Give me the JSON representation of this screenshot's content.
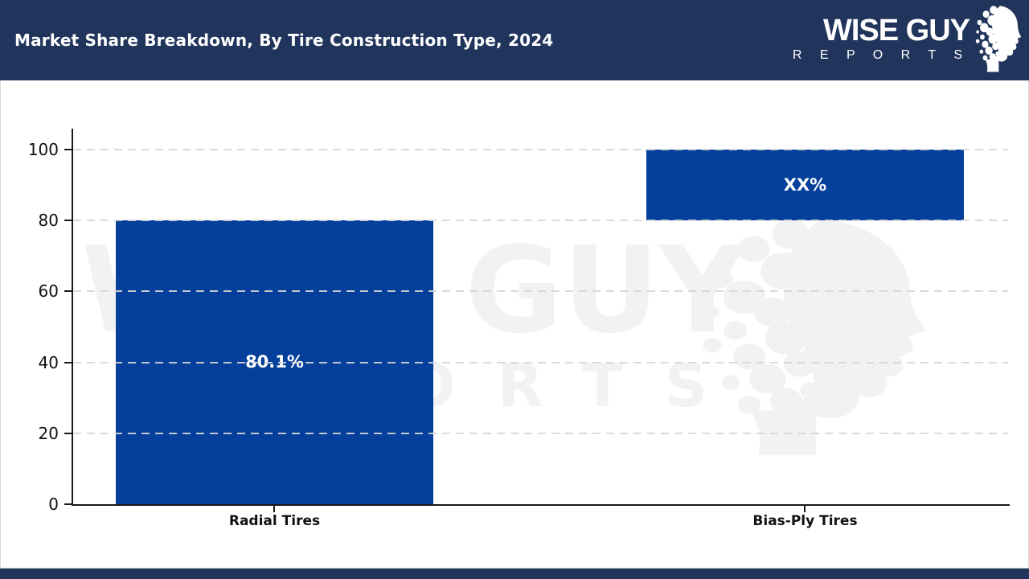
{
  "header": {
    "title": "Market Share Breakdown, By Tire Construction Type, 2024",
    "logo": {
      "line1": "WISE GUY",
      "line2": "R E P O R T S"
    }
  },
  "watermark": {
    "line1": "WISE GUY",
    "line2": "REPORTS"
  },
  "chart_data": {
    "type": "bar",
    "title": "Market Share Breakdown, By Tire Construction Type, 2024",
    "categories": [
      "Radial Tires",
      "Bias-Ply Tires"
    ],
    "values": [
      80.1,
      19.9
    ],
    "value_labels": [
      "80.1%",
      "XX%"
    ],
    "bars": [
      {
        "category": "Radial Tires",
        "base": 0,
        "top": 80.1,
        "label": "80.1%"
      },
      {
        "category": "Bias-Ply Tires",
        "base": 80,
        "top": 100,
        "label": "XX%"
      }
    ],
    "yticks": [
      0,
      20,
      40,
      60,
      80,
      100
    ],
    "ylim": [
      0,
      106
    ],
    "xlabel": "",
    "ylabel": "",
    "grid": true,
    "legend": "none",
    "bar_color": "#04409b",
    "grid_color": "#d9d9d9",
    "header_color": "#21345b",
    "watermark_color": "#f1f2f4"
  }
}
